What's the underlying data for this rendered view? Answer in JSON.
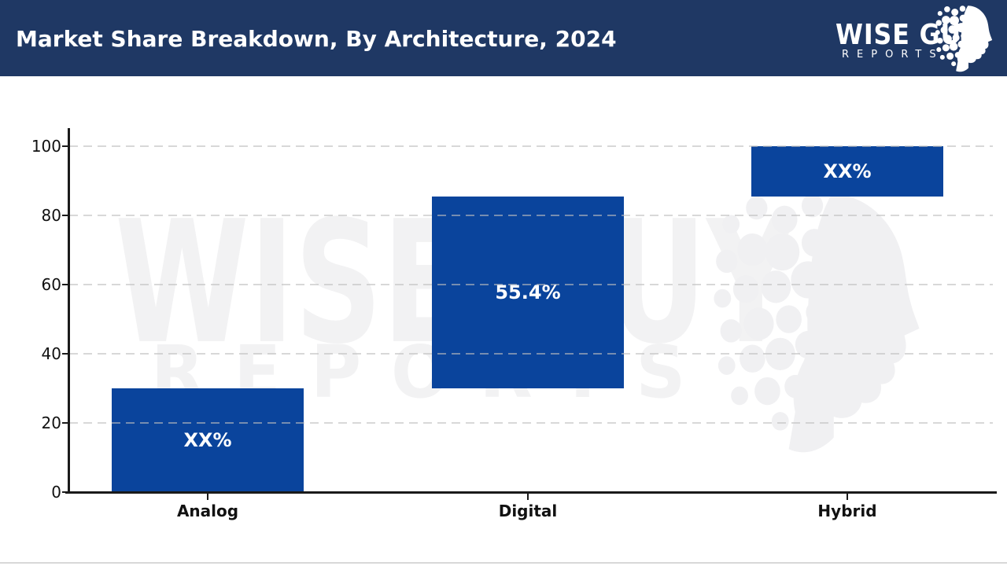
{
  "header": {
    "title": "Market Share Breakdown, By Architecture, 2024"
  },
  "logo": {
    "name": "WISE GUY",
    "tagline": "REPORTS"
  },
  "watermark": {
    "name": "WISE GUY",
    "tagline": "REPORTS"
  },
  "colors": {
    "header_bg": "#1f3864",
    "bar": "#0a449c",
    "axis": "#1a1a1a",
    "gridline": "#d8d8d8",
    "label_on_bar": "#ffffff",
    "watermark": "#f2f2f3",
    "title_text": "#ffffff"
  },
  "chart_data": {
    "type": "bar",
    "subtype": "floating stacked percentage segments (waterfall-style)",
    "title": "Market Share Breakdown, By Architecture, 2024",
    "categories": [
      "Analog",
      "Digital",
      "Hybrid"
    ],
    "series": [
      {
        "name": "Market share segment",
        "segments": [
          {
            "category": "Analog",
            "from": 0,
            "to": 30,
            "value": 30,
            "label": "XX%"
          },
          {
            "category": "Digital",
            "from": 30,
            "to": 85.4,
            "value": 55.4,
            "label": "55.4%"
          },
          {
            "category": "Hybrid",
            "from": 85.4,
            "to": 100,
            "value": 14.6,
            "label": "XX%"
          }
        ]
      }
    ],
    "xlabel": "",
    "ylabel": "",
    "yticks": [
      0,
      20,
      40,
      60,
      80,
      100
    ],
    "ylim": [
      0,
      105
    ],
    "grid": "horizontal dashed gridlines, drawn above bars",
    "legend": false
  }
}
